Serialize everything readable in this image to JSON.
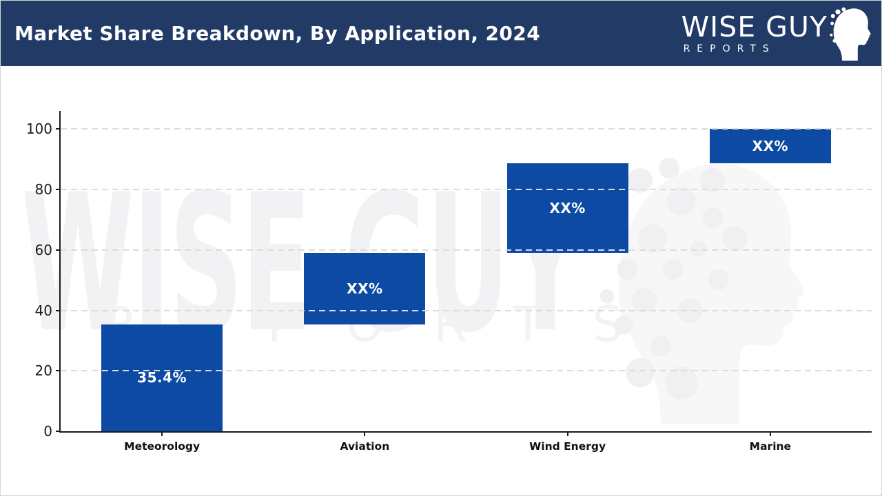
{
  "header": {
    "title": "Market Share Breakdown, By Application, 2024",
    "logo": {
      "line1": "WISE GUY",
      "line2": "REPORTS"
    }
  },
  "watermark": {
    "line1": "WISE GUY",
    "line2": "REPORTS"
  },
  "chart_data": {
    "type": "bar",
    "subtype": "waterfall",
    "title": "Market Share Breakdown, By Application, 2024",
    "categories": [
      "Meteorology",
      "Aviation",
      "Wind Energy",
      "Marine"
    ],
    "segments": [
      {
        "category": "Meteorology",
        "start": 0,
        "end": 35.4,
        "label": "35.4%"
      },
      {
        "category": "Aviation",
        "start": 35.4,
        "end": 59,
        "label": "XX%"
      },
      {
        "category": "Wind Energy",
        "start": 59,
        "end": 88.6,
        "label": "XX%"
      },
      {
        "category": "Marine",
        "start": 88.6,
        "end": 100,
        "label": "XX%"
      }
    ],
    "yticks": [
      0,
      20,
      40,
      60,
      80,
      100
    ],
    "ylim": [
      0,
      106
    ],
    "xlabel": "",
    "ylabel": "",
    "grid": "dashed-horizontal",
    "legend_position": "none",
    "bar_color": "#0d4aa3",
    "bar_label_color": "#ffffff"
  },
  "colors": {
    "header_bg": "#213a66",
    "axis": "#1a1a1a",
    "grid": "#dcdcdc",
    "watermark": "#f2f2f4"
  }
}
